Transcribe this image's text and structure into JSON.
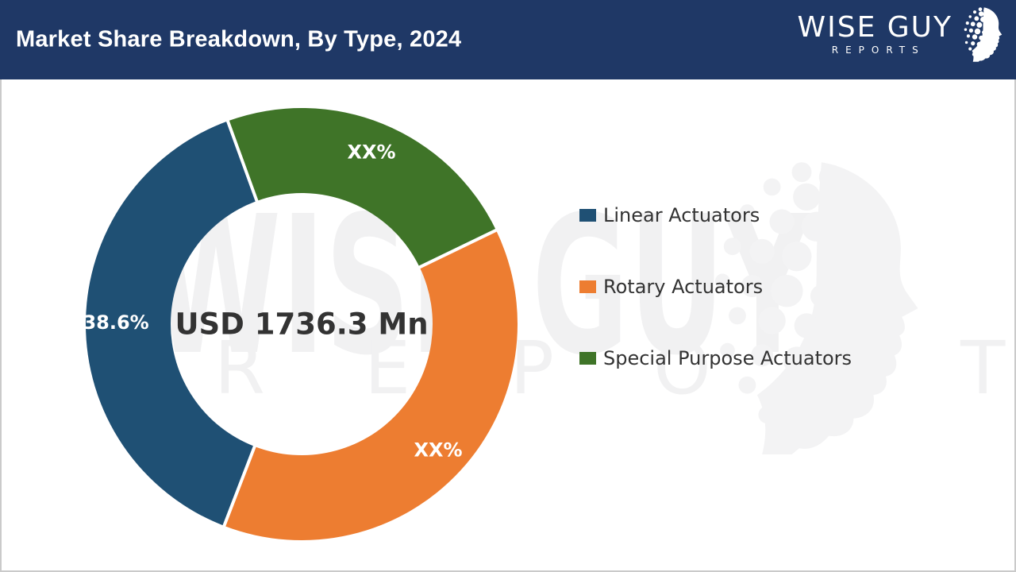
{
  "header": {
    "title": "Market Share Breakdown, By Type, 2024",
    "bg_color": "#1f3866",
    "text_color": "#ffffff",
    "logo": {
      "line1": "WISE GUY",
      "line2": "REPORTS"
    }
  },
  "chart_data": {
    "type": "pie",
    "subtype": "donut",
    "center_label": "USD 1736.3 Mn",
    "start_angle_deg": 110,
    "direction": "counterclockwise",
    "categories": [
      "Linear Actuators",
      "Rotary Actuators",
      "Special Purpose Actuators"
    ],
    "values": [
      38.6,
      38.0,
      23.4
    ],
    "displayed_labels": [
      "38.6%",
      "XX%",
      "XX%"
    ],
    "values_note": "Only the Linear Actuators slice prints its share (38.6%); the other two slices are masked as XX% in the image, their values are estimated from arc angles",
    "colors": [
      "#1f5074",
      "#ed7d31",
      "#3f7428"
    ],
    "label_color": "#ffffff",
    "legend_position": "right",
    "grid": false
  },
  "legend": {
    "items": [
      {
        "label": "Linear Actuators",
        "color": "#1f5074"
      },
      {
        "label": "Rotary Actuators",
        "color": "#ed7d31"
      },
      {
        "label": "Special Purpose Actuators",
        "color": "#3f7428"
      }
    ]
  },
  "watermark": {
    "line1": "WISE GUY",
    "line2": "R E P O R T S",
    "color": "#f1f1f2"
  }
}
